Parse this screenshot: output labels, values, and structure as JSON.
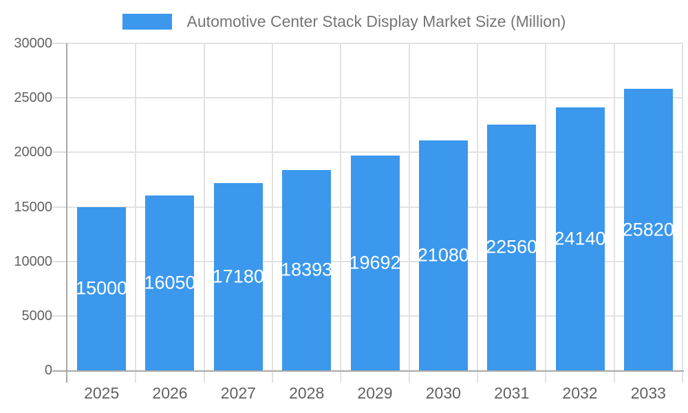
{
  "chart_data": {
    "type": "bar",
    "title": "Automotive Center Stack Display Market Size (Million)",
    "categories": [
      "2025",
      "2026",
      "2027",
      "2028",
      "2029",
      "2030",
      "2031",
      "2032",
      "2033"
    ],
    "values": [
      15000,
      16050,
      17180,
      18393,
      19692,
      21080,
      22560,
      24140,
      25820
    ],
    "series": [
      {
        "name": "Automotive Center Stack Display Market Size (Million)",
        "values": [
          15000,
          16050,
          17180,
          18393,
          19692,
          21080,
          22560,
          24140,
          25820
        ]
      }
    ],
    "xlabel": "",
    "ylabel": "",
    "ylim": [
      0,
      30000
    ],
    "yticks": [
      0,
      5000,
      10000,
      15000,
      20000,
      25000,
      30000
    ],
    "grid": true,
    "legend_position": "top",
    "value_labels": "inside-center",
    "colors": {
      "bar": "#3B98EC",
      "bar_label": "#FFFFFF",
      "gridline": "#E2E2E2",
      "axis_line": "#A8A8A8",
      "axis_text": "#616161",
      "legend_text": "#757575",
      "background": "#FFFFFF"
    }
  }
}
